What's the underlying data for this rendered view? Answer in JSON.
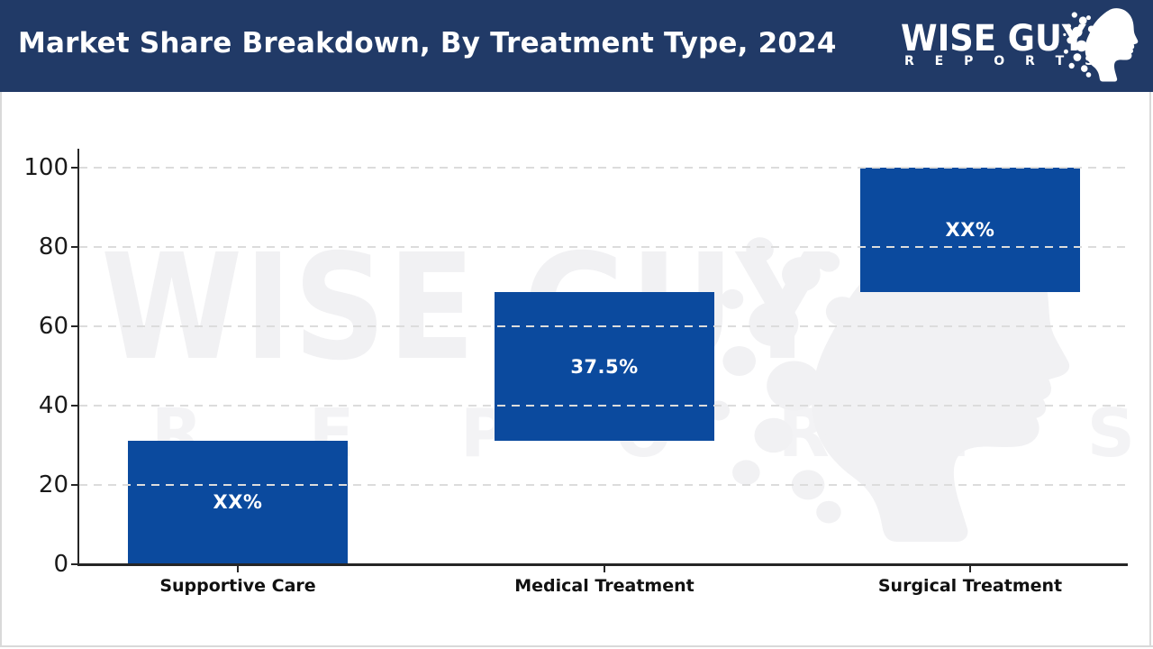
{
  "header": {
    "title": "Market Share Breakdown, By Treatment Type, 2024",
    "logo": {
      "name": "WISE GUY",
      "sub": "R E P O R T S"
    }
  },
  "watermark": {
    "name": "WISE GUY",
    "sub": "R E P O R T S"
  },
  "chart_data": {
    "type": "bar",
    "subtype": "waterfall",
    "title": "Market Share Breakdown, By Treatment Type, 2024",
    "categories": [
      "Supportive Care",
      "Medical Treatment",
      "Surgical Treatment"
    ],
    "bars": [
      {
        "category": "Supportive Care",
        "label": "XX%",
        "start": 0,
        "end": 31
      },
      {
        "category": "Medical Treatment",
        "label": "37.5%",
        "start": 31,
        "end": 68.5
      },
      {
        "category": "Surgical Treatment",
        "label": "XX%",
        "start": 68.5,
        "end": 100
      }
    ],
    "ylim": [
      0,
      100
    ],
    "yticks": [
      0,
      20,
      40,
      60,
      80,
      100
    ],
    "grid": "horizontal-dashed",
    "legend": "none",
    "bar_color": "#0B4A9E",
    "value_label_color": "#FFFFFF",
    "grid_color": "#DCDCDC",
    "axis_color": "#262626"
  },
  "colors": {
    "header_bg": "#213A67",
    "watermark": "#F1F1F3",
    "page_border": "#D9D9D9"
  }
}
